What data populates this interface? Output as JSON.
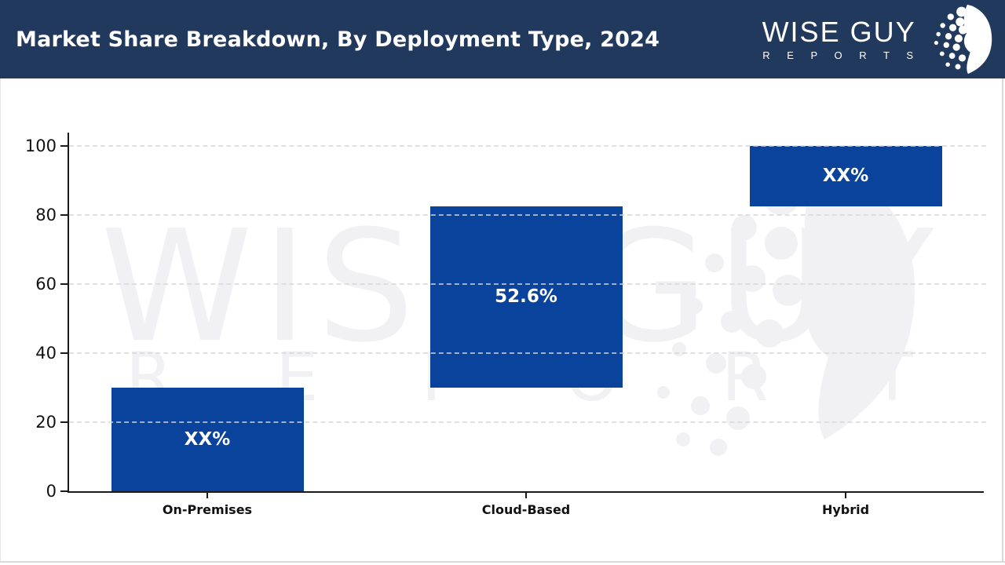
{
  "page": {
    "background": "#ffffff",
    "frame_color": "#d9d9d9"
  },
  "header": {
    "background": "#22395E",
    "title": "Market Share Breakdown, By Deployment Type, 2024",
    "title_color": "#ffffff",
    "logo": {
      "wordmark": "WISE GUY",
      "subtext": "R E P O R T S"
    }
  },
  "watermark": {
    "wordmark": "WISE GUY",
    "subtext": "R E P O R T S",
    "color": "#f1f1f4"
  },
  "chart_data": {
    "type": "bar",
    "variant": "floating-waterfall",
    "title": "Market Share Breakdown, By Deployment Type, 2024",
    "categories": [
      "On-Premises",
      "Cloud-Based",
      "Hybrid"
    ],
    "series": [
      {
        "name": "Market share (%)",
        "segments": [
          {
            "category": "On-Premises",
            "from": 0,
            "to": 30,
            "label": "XX%"
          },
          {
            "category": "Cloud-Based",
            "from": 30,
            "to": 82.6,
            "label": "52.6%"
          },
          {
            "category": "Hybrid",
            "from": 82.6,
            "to": 100,
            "label": "XX%"
          }
        ]
      }
    ],
    "ylim": [
      0,
      100
    ],
    "yticks": [
      0,
      20,
      40,
      60,
      80,
      100
    ],
    "grid": {
      "horizontal": true,
      "style": "dashed"
    },
    "legend": "none",
    "bar_color": "#09439B",
    "bar_label_color": "#ffffff",
    "axis_color": "#1a1a1a"
  }
}
